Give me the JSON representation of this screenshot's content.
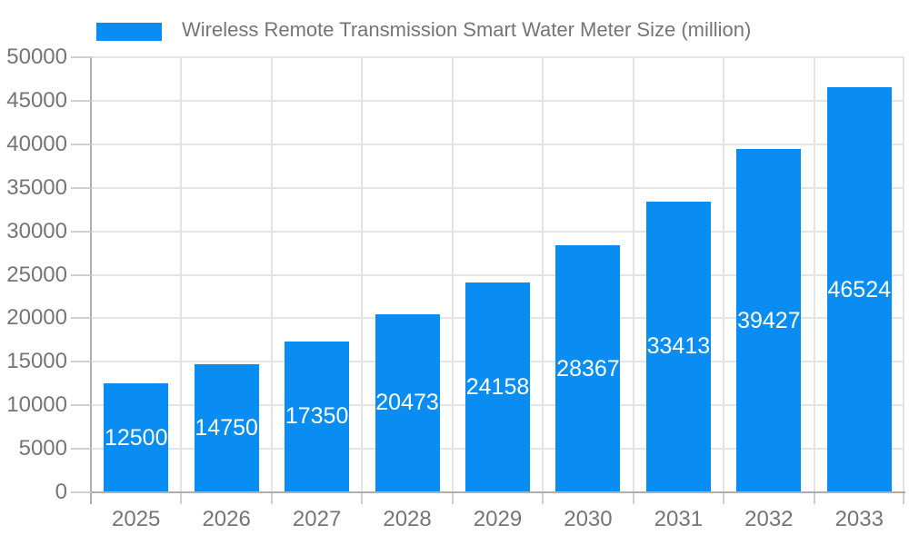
{
  "legend": {
    "label": "Wireless Remote Transmission Smart Water Meter Size (million)"
  },
  "chart_data": {
    "type": "bar",
    "title": "Wireless Remote Transmission Smart Water Meter Size (million)",
    "categories": [
      "2025",
      "2026",
      "2027",
      "2028",
      "2029",
      "2030",
      "2031",
      "2032",
      "2033"
    ],
    "values": [
      12500,
      14750,
      17350,
      20473,
      24158,
      28367,
      33413,
      39427,
      46524
    ],
    "xlabel": "",
    "ylabel": "",
    "ylim": [
      0,
      50000
    ],
    "ytick_step": 5000,
    "ytick_labels": [
      "0",
      "5000",
      "10000",
      "15000",
      "20000",
      "25000",
      "30000",
      "35000",
      "40000",
      "45000",
      "50000"
    ],
    "grid": true,
    "legend_position": "top-left",
    "value_labels": "inside-center-white",
    "colors": {
      "bar": "#0a8df2",
      "value_label": "#ffffff",
      "axis_text": "#757575",
      "gridline": "#e4e4e4",
      "axis_line": "#aeaeae",
      "tick": "#cfcfcf",
      "background": "#ffffff"
    }
  }
}
